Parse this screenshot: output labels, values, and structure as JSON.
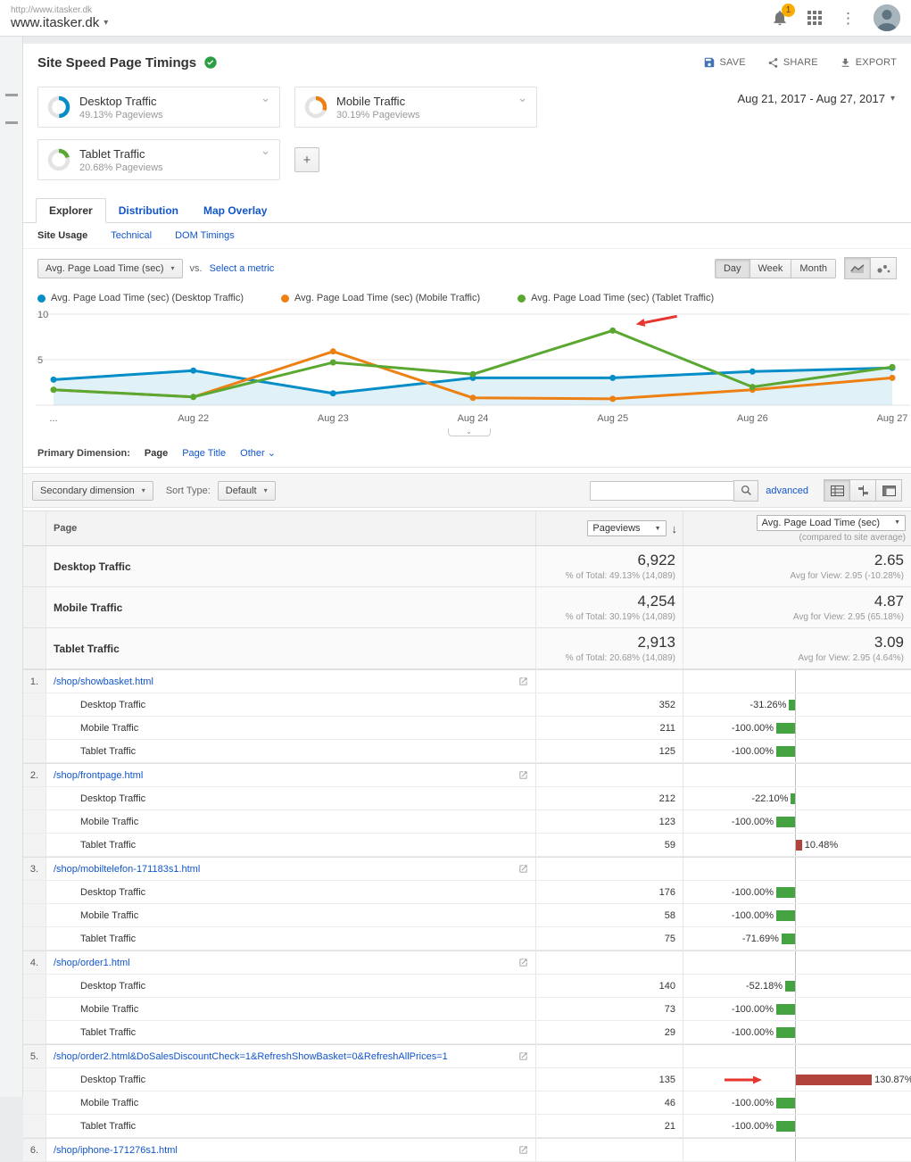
{
  "topbar": {
    "url": "http://www.itasker.dk",
    "site": "www.itasker.dk",
    "badge": "1"
  },
  "report": {
    "title": "Site Speed Page Timings",
    "actions": {
      "save": "SAVE",
      "share": "SHARE",
      "export": "EXPORT"
    },
    "date_range": "Aug 21, 2017 - Aug 27, 2017"
  },
  "segments": [
    {
      "name": "Desktop Traffic",
      "sub": "49.13% Pageviews",
      "color": "#058dc7",
      "pct": 49.13
    },
    {
      "name": "Mobile Traffic",
      "sub": "30.19% Pageviews",
      "color": "#ed8012",
      "pct": 30.19
    },
    {
      "name": "Tablet Traffic",
      "sub": "20.68% Pageviews",
      "color": "#5aa831",
      "pct": 20.68
    }
  ],
  "tabs": [
    "Explorer",
    "Distribution",
    "Map Overlay"
  ],
  "subtabs": [
    "Site Usage",
    "Technical",
    "DOM Timings"
  ],
  "metric_bar": {
    "metric": "Avg. Page Load Time (sec)",
    "vs": "vs.",
    "select_metric": "Select a metric",
    "granularity": [
      "Day",
      "Week",
      "Month"
    ],
    "active_granularity": "Day"
  },
  "chart_data": {
    "type": "line",
    "x": [
      "...",
      "Aug 22",
      "Aug 23",
      "Aug 24",
      "Aug 25",
      "Aug 26",
      "Aug 27"
    ],
    "series": [
      {
        "name": "Avg. Page Load Time (sec) (Desktop Traffic)",
        "color": "#058dc7",
        "area": true,
        "values": [
          2.8,
          3.8,
          1.3,
          3.0,
          3.0,
          3.7,
          4.1
        ]
      },
      {
        "name": "Avg. Page Load Time (sec) (Mobile Traffic)",
        "color": "#ed8012",
        "values": [
          1.7,
          0.9,
          5.9,
          0.8,
          0.7,
          1.7,
          3.0
        ]
      },
      {
        "name": "Avg. Page Load Time (sec) (Tablet Traffic)",
        "color": "#5aa831",
        "values": [
          1.7,
          0.9,
          4.7,
          3.4,
          8.2,
          2.0,
          4.2
        ]
      }
    ],
    "ylim": [
      0,
      10
    ],
    "yticks": [
      5,
      10
    ],
    "grid": true,
    "legend_position": "top",
    "annotation": "red arrow pointing at Tablet Traffic peak on Aug 25"
  },
  "dimension_bar": {
    "label": "Primary Dimension:",
    "page": "Page",
    "page_title": "Page Title",
    "other": "Other"
  },
  "table_toolbar": {
    "secondary_dimension": "Secondary dimension",
    "sort_type_label": "Sort Type:",
    "sort_type_value": "Default",
    "advanced": "advanced",
    "search_value": ""
  },
  "table": {
    "columns": {
      "page": "Page",
      "pageviews": "Pageviews",
      "avg_metric": "Avg. Page Load Time (sec)",
      "avg_sub": "(compared to site average)"
    },
    "totals": [
      {
        "name": "Desktop Traffic",
        "pageviews": "6,922",
        "pageviews_sub": "% of Total: 49.13% (14,089)",
        "avg": "2.65",
        "avg_sub": "Avg for View: 2.95 (-10.28%)"
      },
      {
        "name": "Mobile Traffic",
        "pageviews": "4,254",
        "pageviews_sub": "% of Total: 30.19% (14,089)",
        "avg": "4.87",
        "avg_sub": "Avg for View: 2.95 (65.18%)"
      },
      {
        "name": "Tablet Traffic",
        "pageviews": "2,913",
        "pageviews_sub": "% of Total: 20.68% (14,089)",
        "avg": "3.09",
        "avg_sub": "Avg for View: 2.95 (4.64%)"
      }
    ],
    "rows": [
      {
        "num": "1.",
        "page": "/shop/showbasket.html",
        "entries": [
          {
            "segment": "Desktop Traffic",
            "pageviews": "352",
            "pct": -31.26,
            "label": "-31.26%"
          },
          {
            "segment": "Mobile Traffic",
            "pageviews": "211",
            "pct": -100,
            "label": "-100.00%"
          },
          {
            "segment": "Tablet Traffic",
            "pageviews": "125",
            "pct": -100,
            "label": "-100.00%"
          }
        ]
      },
      {
        "num": "2.",
        "page": "/shop/frontpage.html",
        "entries": [
          {
            "segment": "Desktop Traffic",
            "pageviews": "212",
            "pct": -22.1,
            "label": "-22.10%"
          },
          {
            "segment": "Mobile Traffic",
            "pageviews": "123",
            "pct": -100,
            "label": "-100.00%"
          },
          {
            "segment": "Tablet Traffic",
            "pageviews": "59",
            "pct": 10.48,
            "label": "10.48%"
          }
        ]
      },
      {
        "num": "3.",
        "page": "/shop/mobiltelefon-171183s1.html",
        "entries": [
          {
            "segment": "Desktop Traffic",
            "pageviews": "176",
            "pct": -100,
            "label": "-100.00%"
          },
          {
            "segment": "Mobile Traffic",
            "pageviews": "58",
            "pct": -100,
            "label": "-100.00%"
          },
          {
            "segment": "Tablet Traffic",
            "pageviews": "75",
            "pct": -71.69,
            "label": "-71.69%"
          }
        ]
      },
      {
        "num": "4.",
        "page": "/shop/order1.html",
        "entries": [
          {
            "segment": "Desktop Traffic",
            "pageviews": "140",
            "pct": -52.18,
            "label": "-52.18%"
          },
          {
            "segment": "Mobile Traffic",
            "pageviews": "73",
            "pct": -100,
            "label": "-100.00%"
          },
          {
            "segment": "Tablet Traffic",
            "pageviews": "29",
            "pct": -100,
            "label": "-100.00%"
          }
        ]
      },
      {
        "num": "5.",
        "page": "/shop/order2.html&DoSalesDiscountCheck=1&RefreshShowBasket=0&RefreshAllPrices=1",
        "entries": [
          {
            "segment": "Desktop Traffic",
            "pageviews": "135",
            "pct": 130.87,
            "label": "130.87%",
            "arrow": true
          },
          {
            "segment": "Mobile Traffic",
            "pageviews": "46",
            "pct": -100,
            "label": "-100.00%"
          },
          {
            "segment": "Tablet Traffic",
            "pageviews": "21",
            "pct": -100,
            "label": "-100.00%"
          }
        ]
      },
      {
        "num": "6.",
        "page": "/shop/iphone-171276s1.html",
        "entries": []
      }
    ]
  },
  "icons": {
    "chevron_down": "▾",
    "chevron_small": "⌄",
    "caret_down": "▼",
    "sort_desc": "↓",
    "plus": "+",
    "more_vertical": "⋮"
  },
  "colors": {
    "negative_bar": "#44a340",
    "positive_bar": "#b2423c",
    "annotation_arrow": "#e8352e",
    "link": "#1155cc",
    "badge": "#f9ab00"
  }
}
